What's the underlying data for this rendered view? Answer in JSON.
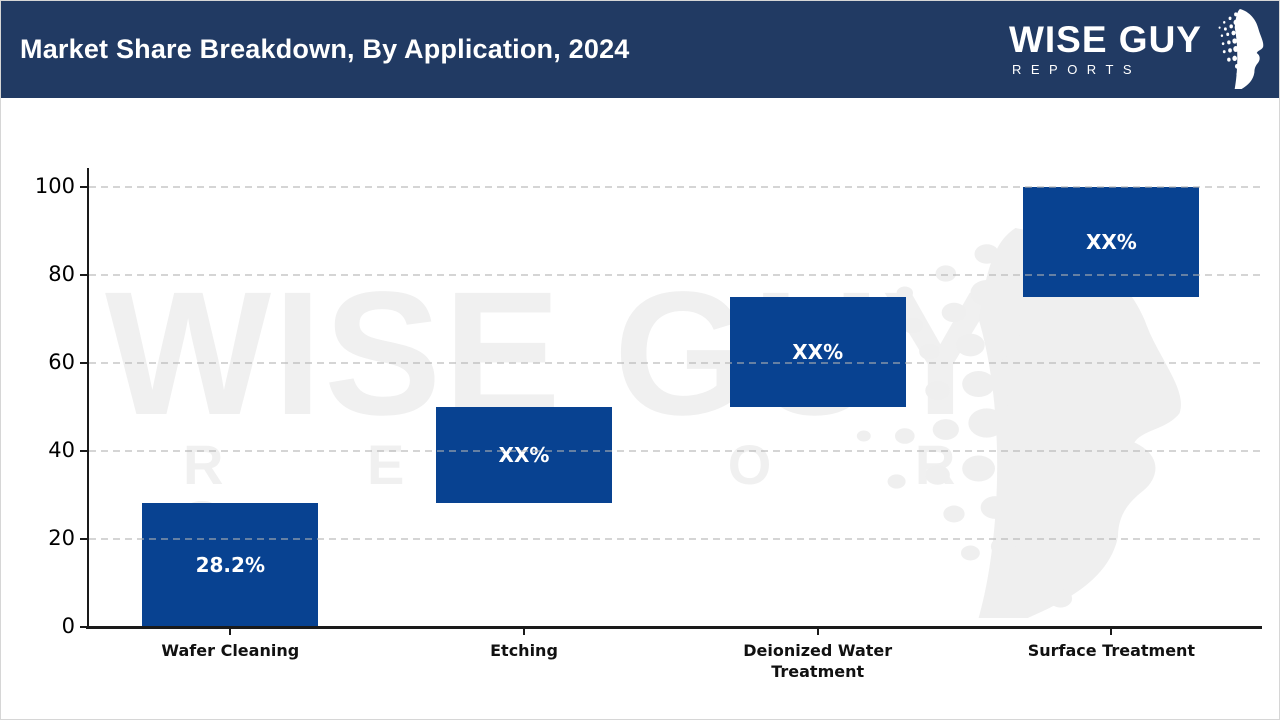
{
  "header": {
    "title": "Market Share Breakdown, By Application, 2024",
    "bg_color": "#213A63",
    "logo": {
      "line1": "WISE GUY",
      "line2": "REPORTS"
    }
  },
  "watermark": {
    "line1": "WISE GUY",
    "line2": "R E P O R T S"
  },
  "chart_data": {
    "type": "bar",
    "subtype": "waterfall",
    "title": "Market Share Breakdown, By Application, 2024",
    "categories": [
      "Wafer Cleaning",
      "Etching",
      "Deionized Water Treatment",
      "Surface Treatment"
    ],
    "segments": [
      {
        "category": "Wafer Cleaning",
        "start": 0,
        "end": 28.2,
        "label": "28.2%"
      },
      {
        "category": "Etching",
        "start": 28.2,
        "end": 50,
        "label": "XX%"
      },
      {
        "category": "Deionized Water Treatment",
        "start": 50,
        "end": 75,
        "label": "XX%"
      },
      {
        "category": "Surface Treatment",
        "start": 75,
        "end": 100,
        "label": "XX%"
      }
    ],
    "bar_labels": [
      "28.2%",
      "XX%",
      "XX%",
      "XX%"
    ],
    "y_ticks": [
      0,
      20,
      40,
      60,
      80,
      100
    ],
    "ylim": [
      0,
      105
    ],
    "xlabel": "",
    "ylabel": "",
    "grid": true,
    "grid_style": "dashed",
    "legend": "none",
    "bar_color": "#084291",
    "label_color": "#ffffff"
  }
}
